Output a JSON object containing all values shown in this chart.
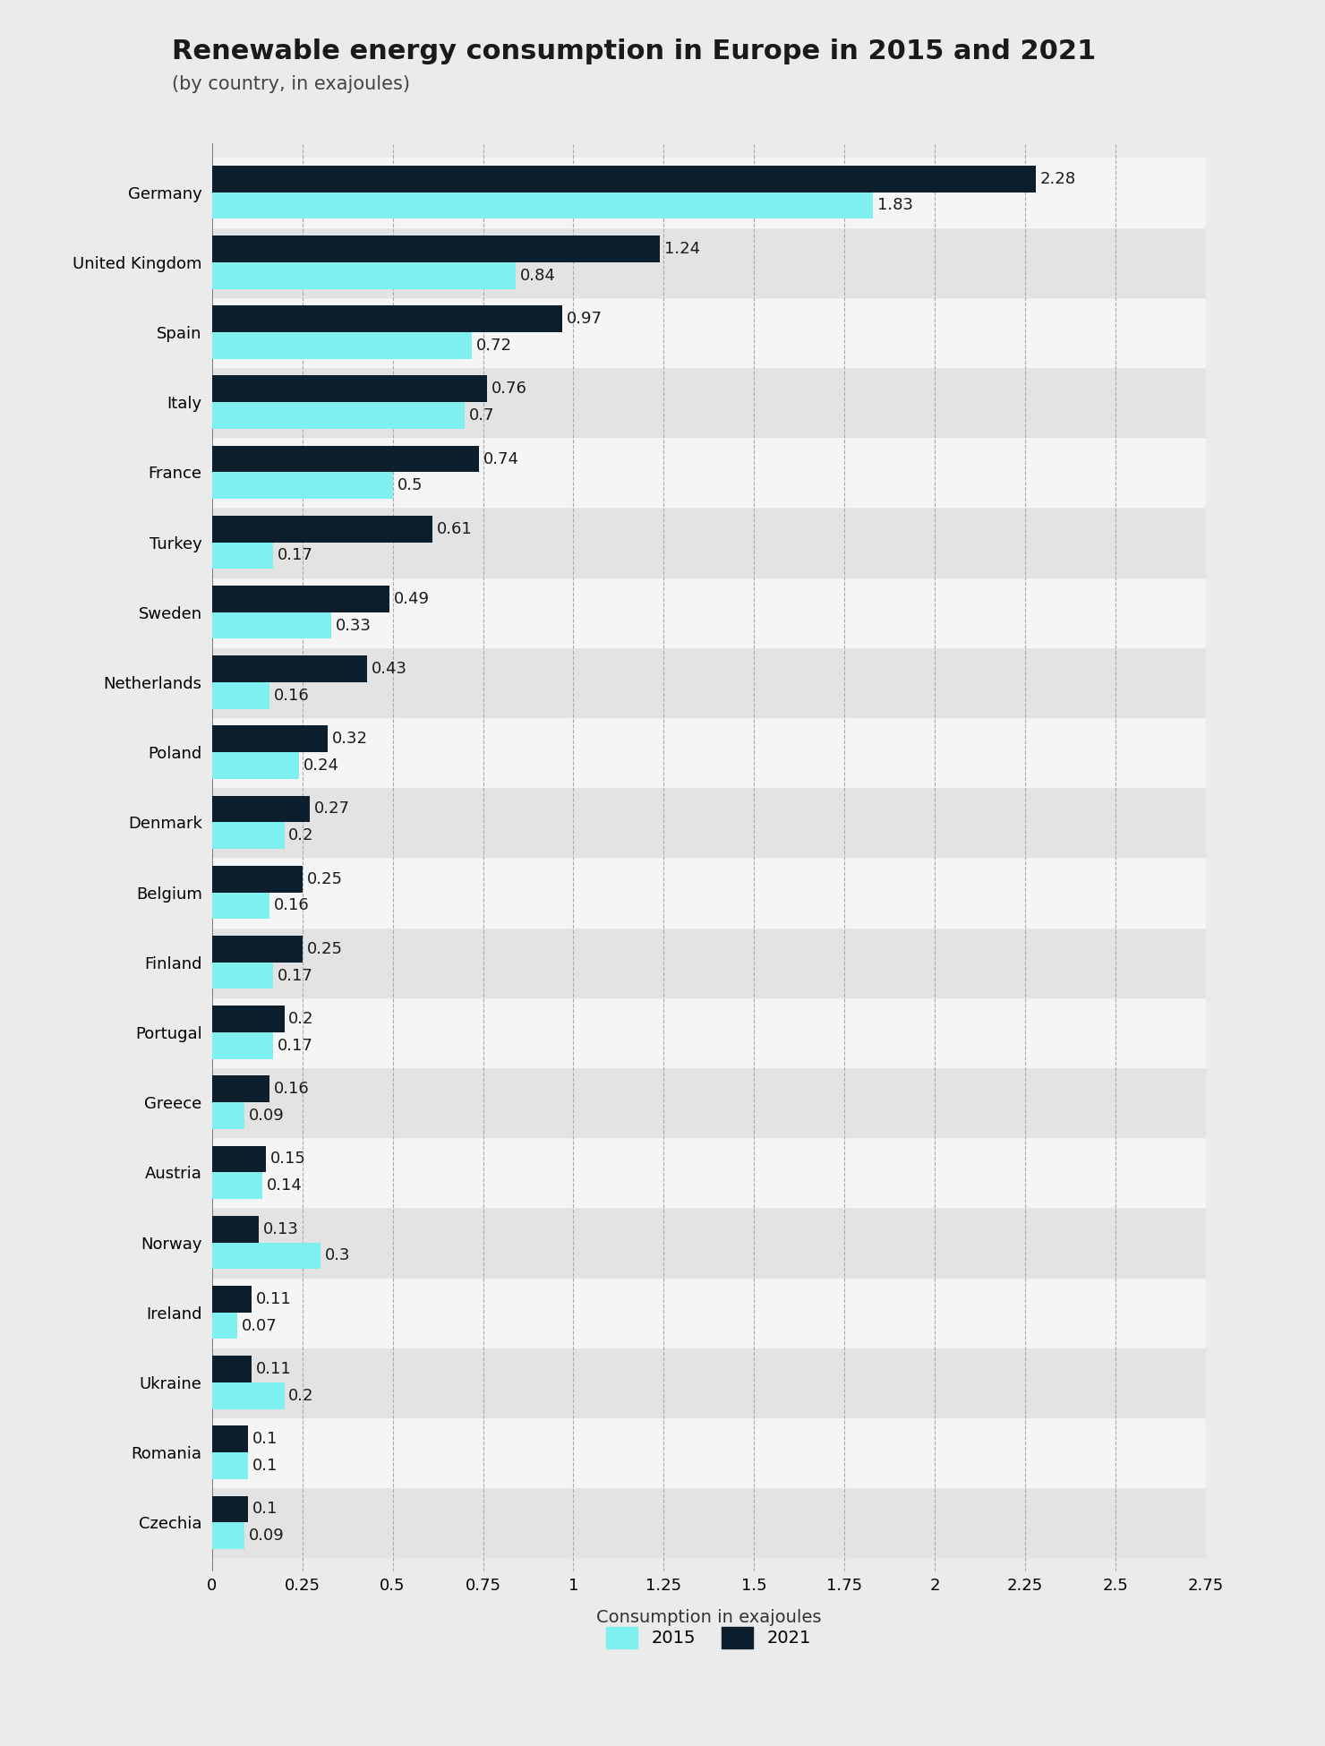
{
  "title": "Renewable energy consumption in Europe in 2015 and 2021",
  "subtitle": "(by country, in exajoules)",
  "xlabel": "Consumption in exajoules",
  "background_color": "#ebebeb",
  "bar_color_2021": "#0d1f2d",
  "bar_color_2015": "#7ef0f0",
  "row_color_light": "#f5f5f5",
  "row_color_dark": "#e3e3e3",
  "countries": [
    "Germany",
    "United Kingdom",
    "Spain",
    "Italy",
    "France",
    "Turkey",
    "Sweden",
    "Netherlands",
    "Poland",
    "Denmark",
    "Belgium",
    "Finland",
    "Portugal",
    "Greece",
    "Austria",
    "Norway",
    "Ireland",
    "Ukraine",
    "Romania",
    "Czechia"
  ],
  "values_2021": [
    2.28,
    1.24,
    0.97,
    0.76,
    0.74,
    0.61,
    0.49,
    0.43,
    0.32,
    0.27,
    0.25,
    0.25,
    0.2,
    0.16,
    0.15,
    0.13,
    0.11,
    0.11,
    0.1,
    0.1
  ],
  "values_2015": [
    1.83,
    0.84,
    0.72,
    0.7,
    0.5,
    0.17,
    0.33,
    0.16,
    0.24,
    0.2,
    0.16,
    0.17,
    0.17,
    0.09,
    0.14,
    0.3,
    0.07,
    0.2,
    0.1,
    0.09
  ],
  "xlim": [
    0,
    2.75
  ],
  "xticks": [
    0,
    0.25,
    0.5,
    0.75,
    1,
    1.25,
    1.5,
    1.75,
    2,
    2.25,
    2.5,
    2.75
  ],
  "xtick_labels": [
    "0",
    "0.25",
    "0.5",
    "0.75",
    "1",
    "1.25",
    "1.5",
    "1.75",
    "2",
    "2.25",
    "2.5",
    "2.75"
  ],
  "title_fontsize": 22,
  "subtitle_fontsize": 15,
  "label_fontsize": 13,
  "tick_fontsize": 13,
  "bar_height": 0.38,
  "legend_label_2015": "2015",
  "legend_label_2021": "2021"
}
